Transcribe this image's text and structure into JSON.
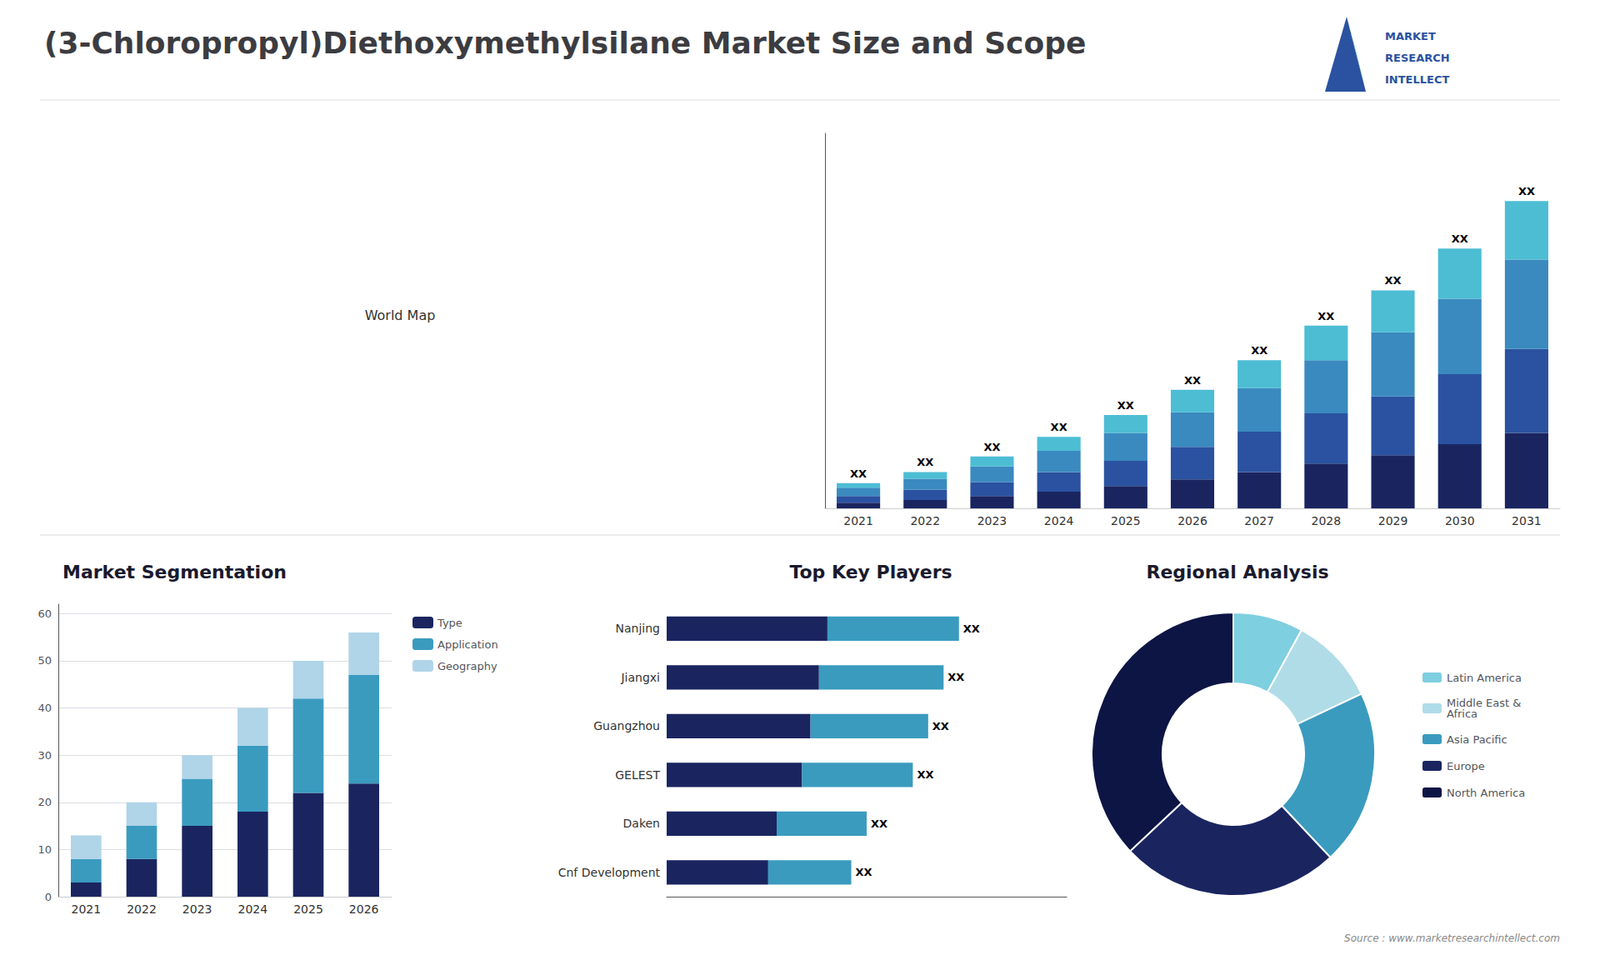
{
  "title": "(3-Chloropropyl)Diethoxymethylsilane Market Size and Scope",
  "annotations": [
    "World Map",
    "MARKET",
    "RESEARCH",
    "INTELLECT",
    "Source : www.marketresearchintellect.com"
  ],
  "chart_data": [
    {
      "type": "bar",
      "stacked": true,
      "categories": [
        "2021",
        "2022",
        "2023",
        "2024",
        "2025",
        "2026",
        "2027",
        "2028",
        "2029",
        "2030",
        "2031"
      ],
      "series": [
        {
          "color": "#1a2560",
          "values": [
            1.0,
            1.5,
            2.2,
            3.0,
            4.0,
            5.2,
            6.5,
            8.0,
            9.5,
            11.5,
            13.5
          ]
        },
        {
          "color": "#2a52a0",
          "values": [
            1.2,
            1.8,
            2.5,
            3.5,
            4.5,
            5.8,
            7.2,
            9.0,
            10.5,
            12.5,
            15.0
          ]
        },
        {
          "color": "#3a8abf",
          "values": [
            1.5,
            2.0,
            2.8,
            3.8,
            5.0,
            6.2,
            7.8,
            9.5,
            11.5,
            13.5,
            16.0
          ]
        },
        {
          "color": "#4dbdd4",
          "values": [
            0.8,
            1.2,
            1.8,
            2.5,
            3.2,
            4.0,
            5.0,
            6.2,
            7.5,
            9.0,
            10.5
          ]
        }
      ],
      "ylim": [
        0,
        67.1
      ],
      "tick_labels": "x",
      "grid": false,
      "annotations": [
        "XX",
        "XX",
        "XX",
        "XX",
        "XX",
        "XX",
        "XX",
        "XX",
        "XX",
        "XX",
        "XX"
      ]
    },
    {
      "type": "bar",
      "title": "Market Segmentation",
      "stacked": true,
      "categories": [
        "2021",
        "2022",
        "2023",
        "2024",
        "2025",
        "2026"
      ],
      "series": [
        {
          "name": "Type",
          "color": "#1a2560",
          "values": [
            3,
            8,
            15,
            18,
            22,
            24
          ]
        },
        {
          "name": "Application",
          "color": "#3a9bbf",
          "values": [
            5,
            7,
            10,
            14,
            20,
            23
          ]
        },
        {
          "name": "Geography",
          "color": "#b0d4e8",
          "values": [
            5,
            5,
            5,
            8,
            8,
            9
          ]
        }
      ],
      "ylim": [
        0,
        62
      ],
      "yticks": [
        0,
        10,
        20,
        30,
        40,
        50,
        60
      ],
      "grid": true,
      "legend": "upper right"
    },
    {
      "type": "bar",
      "title": "Top Key Players",
      "orientation": "horizontal",
      "stacked": true,
      "categories": [
        "Nanjing",
        "Jiangxi",
        "Guangzhou",
        "GELEST",
        "Daken",
        "Cnf Development"
      ],
      "series": [
        {
          "color": "#1a2560",
          "values": [
            5.225,
            4.95,
            4.675,
            4.4,
            3.575,
            3.3
          ]
        },
        {
          "color": "#3a9bbf",
          "values": [
            4.275,
            4.05,
            3.825,
            3.6,
            2.925,
            2.7
          ]
        }
      ],
      "xlim": [
        0,
        13
      ],
      "tick_labels": "y",
      "grid": false,
      "annotations": [
        "XX",
        "XX",
        "XX",
        "XX",
        "XX",
        "XX"
      ]
    },
    {
      "type": "pie",
      "title": "Regional Analysis",
      "categories": [
        "Latin America",
        "Middle East &\nAfrica",
        "Asia Pacific",
        "Europe",
        "North America"
      ],
      "values": [
        8,
        10,
        20,
        25,
        37
      ],
      "colors": [
        "#7ecfe0",
        "#b0dce8",
        "#3a9bbf",
        "#1a2560",
        "#0d1545"
      ],
      "legend": "right"
    }
  ]
}
